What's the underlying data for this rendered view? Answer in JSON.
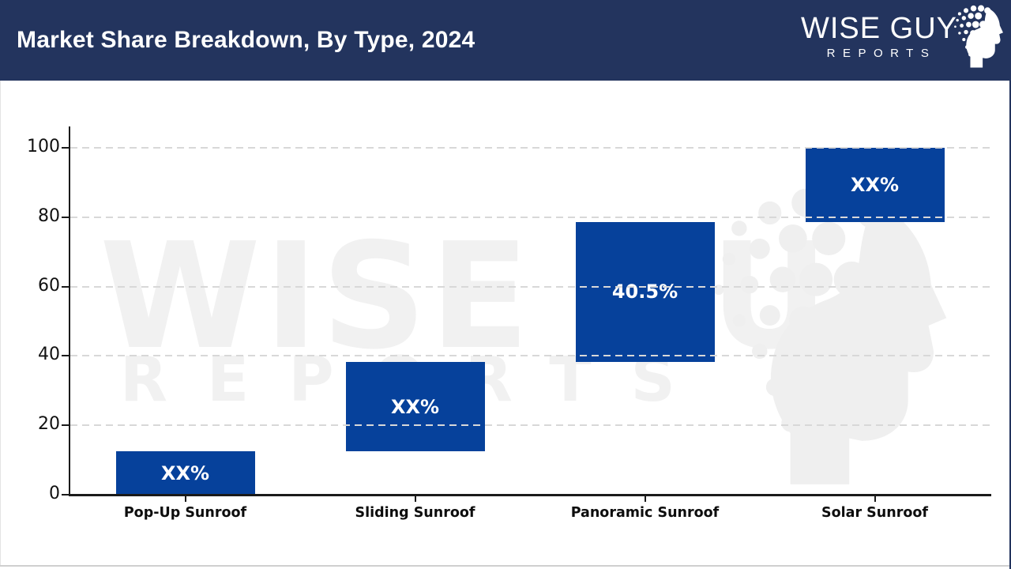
{
  "header": {
    "title": "Market Share Breakdown, By Type, 2024",
    "logo": {
      "primary": "WISE GUY",
      "secondary": "REPORTS"
    }
  },
  "watermark": {
    "primary": "WISE GU",
    "secondary": "REPORTS"
  },
  "colors": {
    "header_bg": "#23345e",
    "bar": "#06419b",
    "bar_label": "#ffffff",
    "gridline": "#d8d8d8",
    "axis": "#1a1a1a",
    "watermark": "#f1f1f1"
  },
  "chart_data": {
    "type": "bar",
    "subtype": "waterfall",
    "title": "Market Share Breakdown, By Type, 2024",
    "xlabel": "",
    "ylabel": "",
    "ylim": [
      0,
      100
    ],
    "yticks": [
      0,
      20,
      40,
      60,
      80,
      100
    ],
    "grid": "horizontal dashed, drawn over bars",
    "legend": "none",
    "categories": [
      "Pop-Up Sunroof",
      "Sliding Sunroof",
      "Panoramic Sunroof",
      "Solar Sunroof"
    ],
    "segments": [
      {
        "category": "Pop-Up Sunroof",
        "start": 0,
        "end": 12.5,
        "label": "XX%"
      },
      {
        "category": "Sliding Sunroof",
        "start": 12.5,
        "end": 38.2,
        "label": "XX%"
      },
      {
        "category": "Panoramic Sunroof",
        "start": 38.2,
        "end": 78.7,
        "label": "40.5%"
      },
      {
        "category": "Solar Sunroof",
        "start": 78.7,
        "end": 100,
        "label": "XX%"
      }
    ]
  }
}
